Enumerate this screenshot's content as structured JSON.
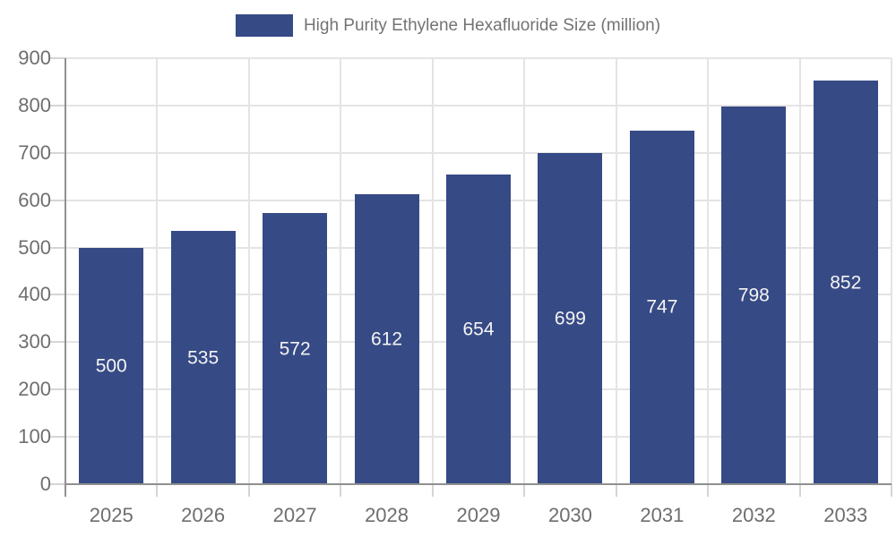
{
  "chart_data": {
    "type": "bar",
    "title": "",
    "legend": "High Purity Ethylene Hexafluoride Size (million)",
    "legend_position": "top",
    "categories": [
      "2025",
      "2026",
      "2027",
      "2028",
      "2029",
      "2030",
      "2031",
      "2032",
      "2033"
    ],
    "values": [
      500,
      535,
      572,
      612,
      654,
      699,
      747,
      798,
      852
    ],
    "xlabel": "",
    "ylabel": "",
    "ylim": [
      0,
      900
    ],
    "y_ticks": [
      0,
      100,
      200,
      300,
      400,
      500,
      600,
      700,
      800,
      900
    ],
    "grid": true,
    "value_labels": "inside-center",
    "colors": {
      "bar": "#364a85",
      "grid_line": "#e4e4e4",
      "tick_line": "#d5d5d5",
      "axis_line": "#909090",
      "axis_label": "#6e6e6e",
      "legend_text": "#737373",
      "value_label": "#f4f4f4"
    }
  }
}
